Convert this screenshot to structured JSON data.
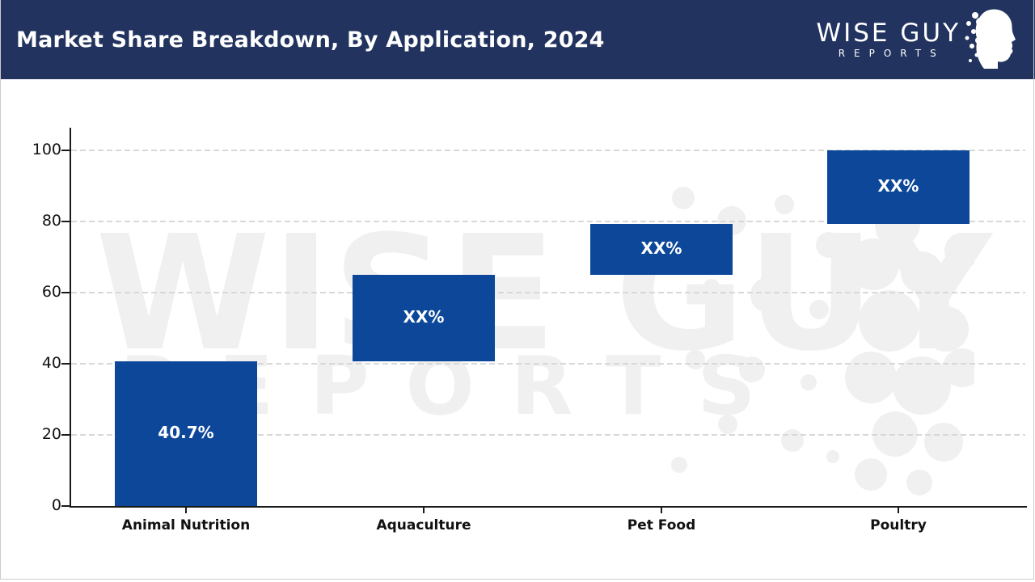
{
  "header": {
    "title": "Market Share Breakdown, By Application, 2024",
    "logo": {
      "line1": "WISE GUY",
      "line2": "REPORTS"
    }
  },
  "watermark": {
    "line1": "WISE GUY",
    "line2": "REPORTS"
  },
  "colors": {
    "header_bg": "#21335e",
    "bar": "#0c4799",
    "gridline": "#d8d8d8",
    "axis": "#1a1a1a",
    "bar_label": "#ffffff",
    "watermark": "#f0f0f1"
  },
  "chart_data": {
    "type": "bar",
    "subtype": "waterfall",
    "title": "Market Share Breakdown, By Application, 2024",
    "categories": [
      "Animal Nutrition",
      "Aquaculture",
      "Pet Food",
      "Poultry"
    ],
    "segments": [
      {
        "category": "Animal Nutrition",
        "start": 0,
        "end": 40.7,
        "label": "40.7%"
      },
      {
        "category": "Aquaculture",
        "start": 40.7,
        "end": 65.0,
        "label": "XX%"
      },
      {
        "category": "Pet Food",
        "start": 65.0,
        "end": 79.4,
        "label": "XX%"
      },
      {
        "category": "Poultry",
        "start": 79.4,
        "end": 100,
        "label": "XX%"
      }
    ],
    "yticks": [
      0,
      20,
      40,
      60,
      80,
      100
    ],
    "ylim": [
      0,
      106
    ],
    "grid": "dashed-horizontal",
    "legend": false,
    "xlabel": "",
    "ylabel": ""
  }
}
